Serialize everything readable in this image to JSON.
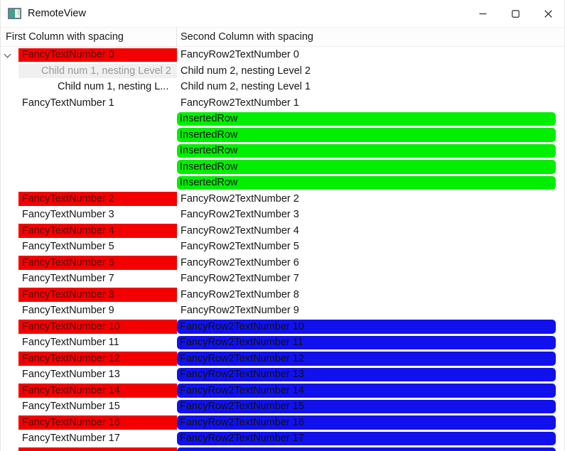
{
  "titlebar": {
    "title": "RemoteView",
    "window_buttons": [
      "minimize",
      "maximize",
      "close"
    ]
  },
  "header": {
    "columns": [
      "First Column with spacing",
      "Second Column with spacing"
    ]
  },
  "palette": {
    "red": "#f40000",
    "green": "#00ee00",
    "blue": "#1111ee",
    "gray_bg": "#f0f0f0",
    "gray_fg": "#9a9a9a",
    "on_red": "#4d1113",
    "on_bar": "#101010",
    "black": "#161616"
  },
  "rows": [
    {
      "c1": "FancyTextNumber 0",
      "c1bg": "red",
      "c1fg": "on_red",
      "indent": 0,
      "chevron": true,
      "c2": "FancyRow2TextNumber 0",
      "c2bg": "none"
    },
    {
      "c1": "Child num 1, nesting Level 2",
      "c1bg": "gray",
      "c1fg": "gray",
      "indent": 1,
      "chevron": true,
      "c2": "Child num 2, nesting Level 2",
      "c2bg": "none"
    },
    {
      "c1": "Child num 1, nesting L...",
      "c1bg": "none",
      "c1fg": "black",
      "indent": 2,
      "chevron": false,
      "c2": "Child num 2, nesting Level 1",
      "c2bg": "none"
    },
    {
      "c1": "FancyTextNumber 1",
      "c1bg": "none",
      "c1fg": "black",
      "indent": 0,
      "chevron": false,
      "c2": "FancyRow2TextNumber 1",
      "c2bg": "none"
    },
    {
      "c1": "",
      "c1bg": "none",
      "c1fg": "black",
      "indent": 0,
      "chevron": false,
      "c2": "InsertedRow",
      "c2bg": "green"
    },
    {
      "c1": "",
      "c1bg": "none",
      "c1fg": "black",
      "indent": 0,
      "chevron": false,
      "c2": "InsertedRow",
      "c2bg": "green"
    },
    {
      "c1": "",
      "c1bg": "none",
      "c1fg": "black",
      "indent": 0,
      "chevron": false,
      "c2": "InsertedRow",
      "c2bg": "green"
    },
    {
      "c1": "",
      "c1bg": "none",
      "c1fg": "black",
      "indent": 0,
      "chevron": false,
      "c2": "InsertedRow",
      "c2bg": "green"
    },
    {
      "c1": "",
      "c1bg": "none",
      "c1fg": "black",
      "indent": 0,
      "chevron": false,
      "c2": "InsertedRow",
      "c2bg": "green"
    },
    {
      "c1": "FancyTextNumber 2",
      "c1bg": "red",
      "c1fg": "on_red",
      "indent": 0,
      "chevron": false,
      "c2": "FancyRow2TextNumber 2",
      "c2bg": "none"
    },
    {
      "c1": "FancyTextNumber 3",
      "c1bg": "none",
      "c1fg": "black",
      "indent": 0,
      "chevron": false,
      "c2": "FancyRow2TextNumber 3",
      "c2bg": "none"
    },
    {
      "c1": "FancyTextNumber 4",
      "c1bg": "red",
      "c1fg": "on_red",
      "indent": 0,
      "chevron": false,
      "c2": "FancyRow2TextNumber 4",
      "c2bg": "none"
    },
    {
      "c1": "FancyTextNumber 5",
      "c1bg": "none",
      "c1fg": "black",
      "indent": 0,
      "chevron": false,
      "c2": "FancyRow2TextNumber 5",
      "c2bg": "none"
    },
    {
      "c1": "FancyTextNumber 6",
      "c1bg": "red",
      "c1fg": "on_red",
      "indent": 0,
      "chevron": false,
      "c2": "FancyRow2TextNumber 6",
      "c2bg": "none"
    },
    {
      "c1": "FancyTextNumber 7",
      "c1bg": "none",
      "c1fg": "black",
      "indent": 0,
      "chevron": false,
      "c2": "FancyRow2TextNumber 7",
      "c2bg": "none"
    },
    {
      "c1": "FancyTextNumber 8",
      "c1bg": "red",
      "c1fg": "on_red",
      "indent": 0,
      "chevron": false,
      "c2": "FancyRow2TextNumber 8",
      "c2bg": "none"
    },
    {
      "c1": "FancyTextNumber 9",
      "c1bg": "none",
      "c1fg": "black",
      "indent": 0,
      "chevron": false,
      "c2": "FancyRow2TextNumber 9",
      "c2bg": "none"
    },
    {
      "c1": "FancyTextNumber 10",
      "c1bg": "red",
      "c1fg": "on_red",
      "indent": 0,
      "chevron": false,
      "c2": "FancyRow2TextNumber 10",
      "c2bg": "blue"
    },
    {
      "c1": "FancyTextNumber 11",
      "c1bg": "none",
      "c1fg": "black",
      "indent": 0,
      "chevron": false,
      "c2": "FancyRow2TextNumber 11",
      "c2bg": "blue"
    },
    {
      "c1": "FancyTextNumber 12",
      "c1bg": "red",
      "c1fg": "on_red",
      "indent": 0,
      "chevron": false,
      "c2": "FancyRow2TextNumber 12",
      "c2bg": "blue"
    },
    {
      "c1": "FancyTextNumber 13",
      "c1bg": "none",
      "c1fg": "black",
      "indent": 0,
      "chevron": false,
      "c2": "FancyRow2TextNumber 13",
      "c2bg": "blue"
    },
    {
      "c1": "FancyTextNumber 14",
      "c1bg": "red",
      "c1fg": "on_red",
      "indent": 0,
      "chevron": false,
      "c2": "FancyRow2TextNumber 14",
      "c2bg": "blue"
    },
    {
      "c1": "FancyTextNumber 15",
      "c1bg": "none",
      "c1fg": "black",
      "indent": 0,
      "chevron": false,
      "c2": "FancyRow2TextNumber 15",
      "c2bg": "blue"
    },
    {
      "c1": "FancyTextNumber 16",
      "c1bg": "red",
      "c1fg": "on_red",
      "indent": 0,
      "chevron": false,
      "c2": "FancyRow2TextNumber 16",
      "c2bg": "blue"
    },
    {
      "c1": "FancyTextNumber 17",
      "c1bg": "none",
      "c1fg": "black",
      "indent": 0,
      "chevron": false,
      "c2": "FancyRow2TextNumber 17",
      "c2bg": "blue"
    },
    {
      "c1": "",
      "c1bg": "red",
      "c1fg": "on_red",
      "indent": 0,
      "chevron": false,
      "c2": "",
      "c2bg": "blue"
    }
  ]
}
